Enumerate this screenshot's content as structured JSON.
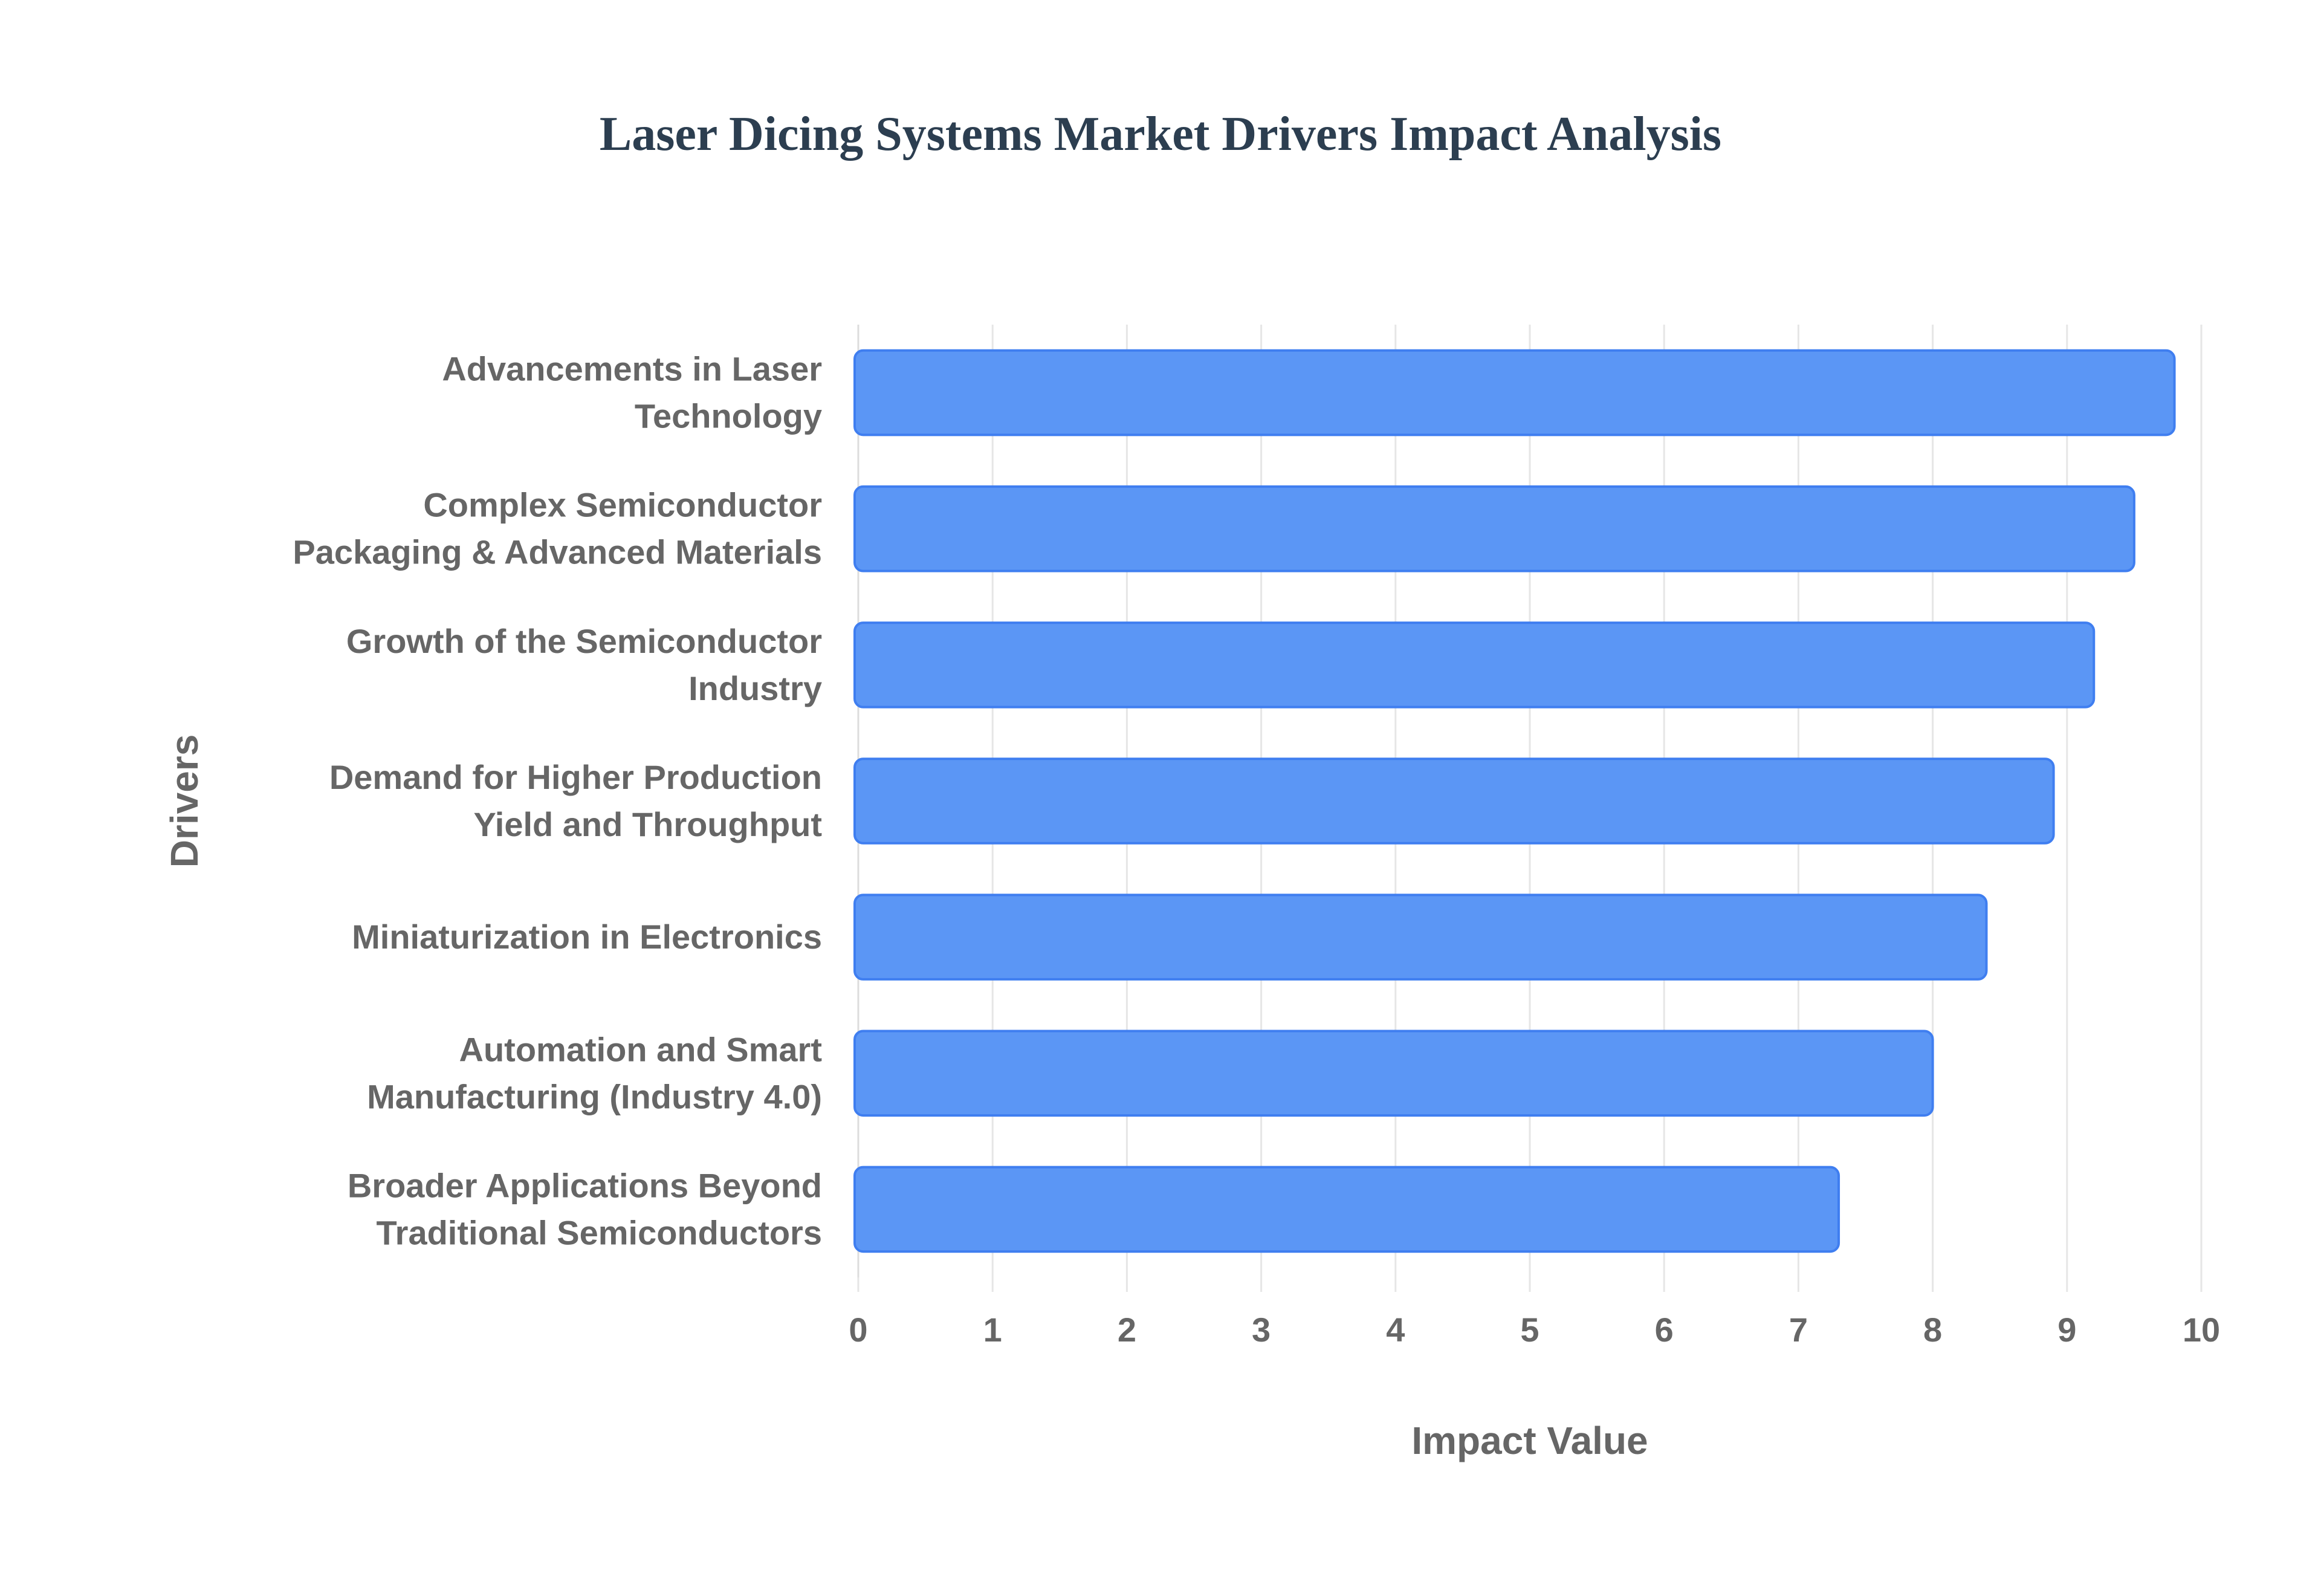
{
  "chart_data": {
    "type": "bar",
    "orientation": "horizontal",
    "title": "Laser Dicing Systems Market Drivers Impact Analysis",
    "xlabel": "Impact Value",
    "ylabel": "Drivers",
    "categories": [
      [
        "Advancements in Laser",
        "Technology"
      ],
      [
        "Complex Semiconductor",
        "Packaging & Advanced Materials"
      ],
      [
        "Growth of the Semiconductor",
        "Industry"
      ],
      [
        "Demand for Higher Production",
        "Yield and Throughput"
      ],
      [
        "Miniaturization in Electronics"
      ],
      [
        "Automation and Smart",
        "Manufacturing (Industry 4.0)"
      ],
      [
        "Broader Applications Beyond",
        "Traditional Semiconductors"
      ]
    ],
    "values": [
      9.8,
      9.5,
      9.2,
      8.9,
      8.4,
      8.0,
      7.3
    ],
    "xlim": [
      0,
      10
    ],
    "xticks": [
      "0",
      "1",
      "2",
      "3",
      "4",
      "5",
      "6",
      "7",
      "8",
      "9",
      "10"
    ],
    "grid": true,
    "bar_color": "#5b96f5",
    "bar_edge_color": "#3f7ef0"
  }
}
